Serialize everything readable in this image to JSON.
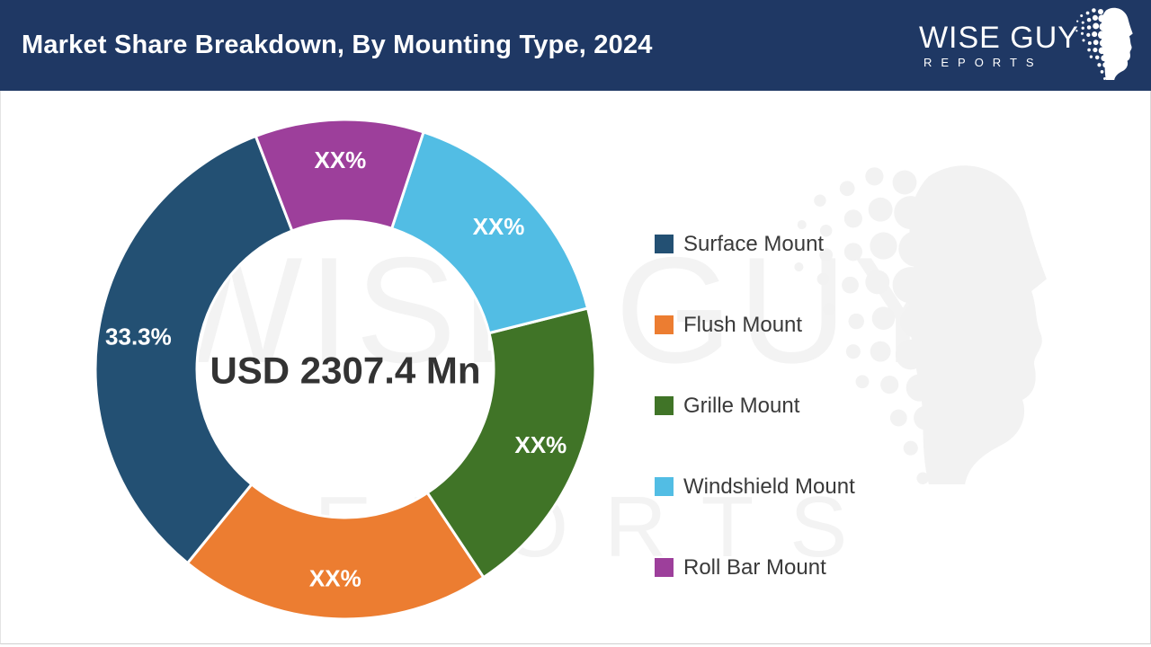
{
  "header": {
    "title": "Market Share Breakdown, By Mounting Type, 2024",
    "logo": {
      "name": "WISE GUY",
      "subtitle": "REPORTS"
    }
  },
  "watermark": {
    "line1": "WISE GUY",
    "line2": "REPORTS"
  },
  "chart_data": {
    "type": "donut",
    "title": "Market Share Breakdown, By Mounting Type, 2024",
    "center_label": "USD 2307.4 Mn",
    "start_angle_deg": 111,
    "direction": "counterclockwise",
    "inner_radius_ratio": 0.593,
    "legend_position": "right",
    "segments": [
      {
        "label": "Surface Mount",
        "display": "33.3%",
        "value_pct": 33.3,
        "color": "#235073"
      },
      {
        "label": "Flush Mount",
        "display": "XX%",
        "value_pct": 20.2,
        "color": "#ec7d31"
      },
      {
        "label": "Grille Mount",
        "display": "XX%",
        "value_pct": 19.6,
        "color": "#407427"
      },
      {
        "label": "Windshield Mount",
        "display": "XX%",
        "value_pct": 16.0,
        "color": "#52bde4"
      },
      {
        "label": "Roll Bar Mount",
        "display": "XX%",
        "value_pct": 10.9,
        "color": "#9d3f9b"
      }
    ]
  },
  "colors": {
    "header_bg": "#1f3864",
    "title_text": "#ffffff",
    "center_text": "#333333",
    "legend_text": "#3a3a3a",
    "watermark": "#f3f3f3",
    "frame_border": "#d9d9d9"
  }
}
